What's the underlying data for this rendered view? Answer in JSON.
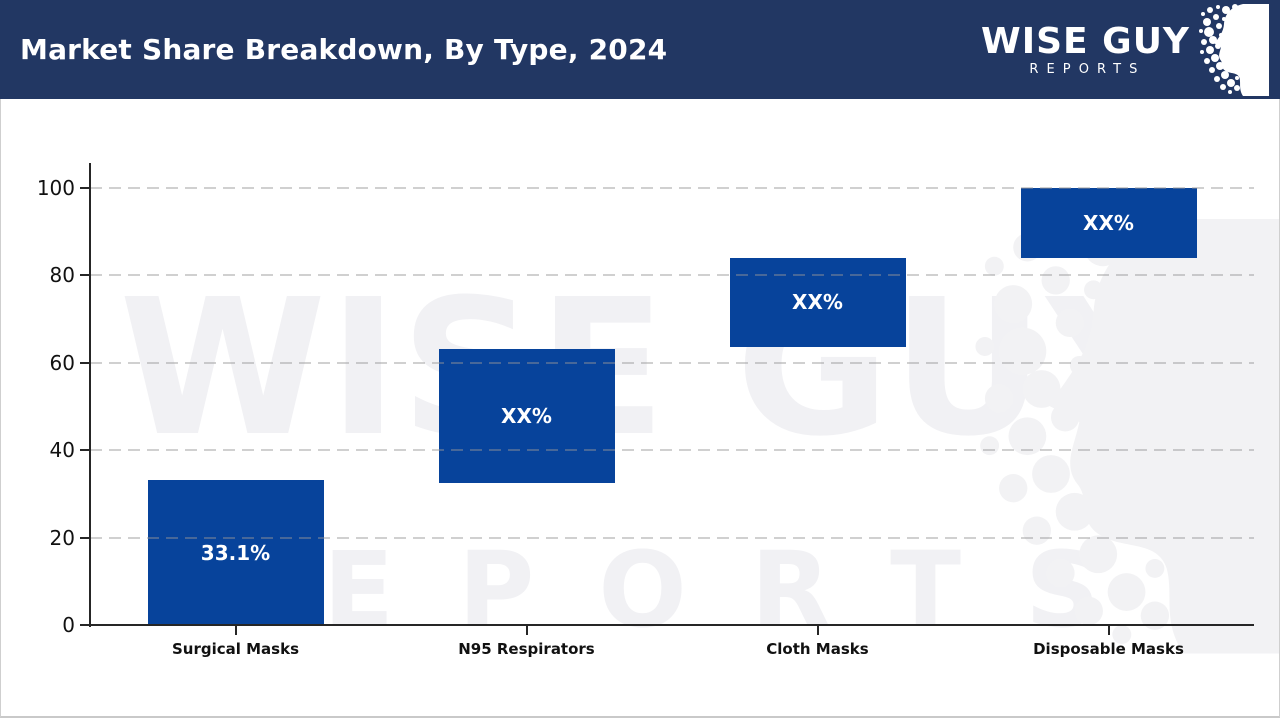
{
  "header": {
    "title": "Market Share Breakdown, By Type, 2024",
    "logo": {
      "name": "WISE GUY",
      "tagline": "REPORTS"
    }
  },
  "watermark": {
    "line1": "WISE GUY",
    "line2": "REPORTS"
  },
  "colors": {
    "header_bg": "#223763",
    "bar": "#07439b",
    "bar_label": "#ffffff",
    "axis": "#262626",
    "grid": "#d9d9d9",
    "watermark": "#f1f1f4"
  },
  "chart_data": {
    "type": "bar",
    "subtype": "floating-waterfall",
    "title": "Market Share Breakdown, By Type, 2024",
    "categories": [
      "Surgical Masks",
      "N95 Respirators",
      "Cloth Masks",
      "Disposable Masks"
    ],
    "series": [
      {
        "name": "Market share (%)",
        "segments": [
          {
            "category": "Surgical Masks",
            "start": 0,
            "end": 33.1,
            "label": "33.1%"
          },
          {
            "category": "N95 Respirators",
            "start": 32.5,
            "end": 63,
            "label": "XX%"
          },
          {
            "category": "Cloth Masks",
            "start": 63.5,
            "end": 84,
            "label": "XX%"
          },
          {
            "category": "Disposable Masks",
            "start": 84,
            "end": 100,
            "label": "XX%"
          }
        ]
      }
    ],
    "xlabel": "",
    "ylabel": "",
    "ylim": [
      0,
      100
    ],
    "yticks": [
      0,
      20,
      40,
      60,
      80,
      100
    ],
    "grid": "horizontal-dashed",
    "legend": "none"
  }
}
